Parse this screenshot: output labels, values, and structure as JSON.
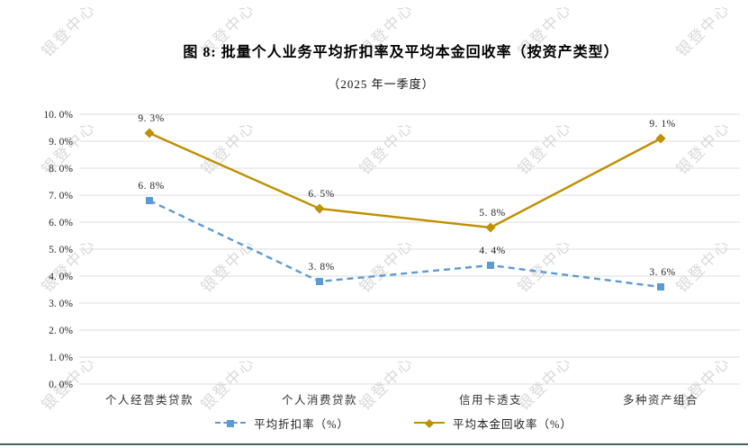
{
  "watermark": {
    "text": "银登中心"
  },
  "chart_data": {
    "type": "line",
    "title": "图 8:  批量个人业务平均折扣率及平均本金回收率（按资产类型）",
    "subtitle": "（2025 年一季度）",
    "categories": [
      "个人经营类贷款",
      "个人消费贷款",
      "信用卡透支",
      "多种资产组合"
    ],
    "series": [
      {
        "id": "avg-discount-rate",
        "name": "平均折扣率（%）",
        "values": [
          6.8,
          3.8,
          4.4,
          3.6
        ],
        "point_labels": [
          "6. 8%",
          "3. 8%",
          "4. 4%",
          "3. 6%"
        ],
        "color": "#5B9BD5",
        "line_style": "dashed",
        "marker": "square"
      },
      {
        "id": "avg-principal-recovery-rate",
        "name": "平均本金回收率（%）",
        "values": [
          9.3,
          6.5,
          5.8,
          9.1
        ],
        "point_labels": [
          "9. 3%",
          "6. 5%",
          "5. 8%",
          "9. 1%"
        ],
        "color": "#BF9000",
        "line_style": "solid",
        "marker": "diamond"
      }
    ],
    "ylim": [
      0,
      10
    ],
    "ytick_step": 1,
    "ytick_labels": [
      "0. 0%",
      "1. 0%",
      "2. 0%",
      "3. 0%",
      "4. 0%",
      "5. 0%",
      "6. 0%",
      "7. 0%",
      "8. 0%",
      "9. 0%",
      "10. 0%"
    ],
    "grid": true,
    "legend_position": "bottom"
  },
  "colors": {
    "grid": "#dcdcdc",
    "tick_text": "#262626",
    "category_text": "#333333",
    "data_label_text": "#262626",
    "footer_divider": "#426b4e"
  }
}
